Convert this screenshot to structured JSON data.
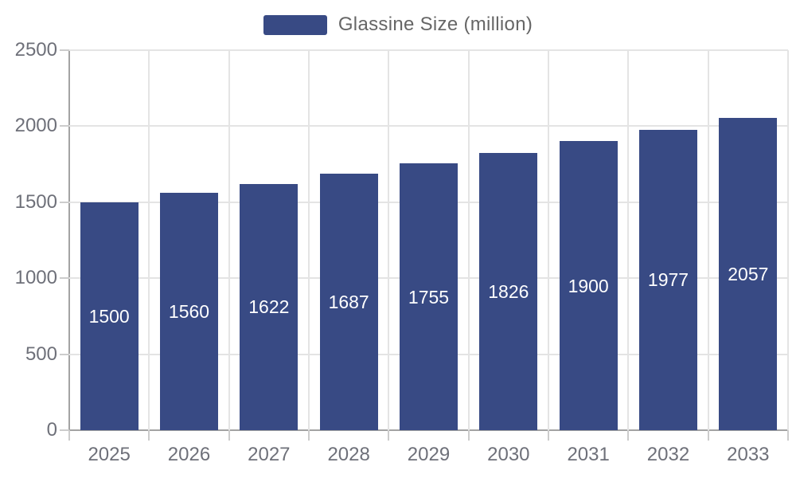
{
  "chart_data": {
    "type": "bar",
    "title": "",
    "legend": {
      "label": "Glassine Size (million)",
      "position": "top-center"
    },
    "categories": [
      "2025",
      "2026",
      "2027",
      "2028",
      "2029",
      "2030",
      "2031",
      "2032",
      "2033"
    ],
    "series": [
      {
        "name": "Glassine Size (million)",
        "values": [
          1500,
          1560,
          1622,
          1687,
          1755,
          1826,
          1900,
          1977,
          2057
        ]
      }
    ],
    "value_labels": {
      "visible": true,
      "placement": "inside-middle",
      "color": "#ffffff"
    },
    "xlabel": "",
    "ylabel": "",
    "ylim": [
      0,
      2500
    ],
    "yticks": [
      0,
      500,
      1000,
      1500,
      2000,
      2500
    ],
    "grid": "both",
    "colors": {
      "bar": "#384a84",
      "grid": "#e4e4e4",
      "axis_line": "#a3a3a3",
      "tick": "#cccccc",
      "axis_text": "#6e7079",
      "legend_text": "#666666",
      "value_text": "#ffffff",
      "background": "#ffffff"
    }
  }
}
